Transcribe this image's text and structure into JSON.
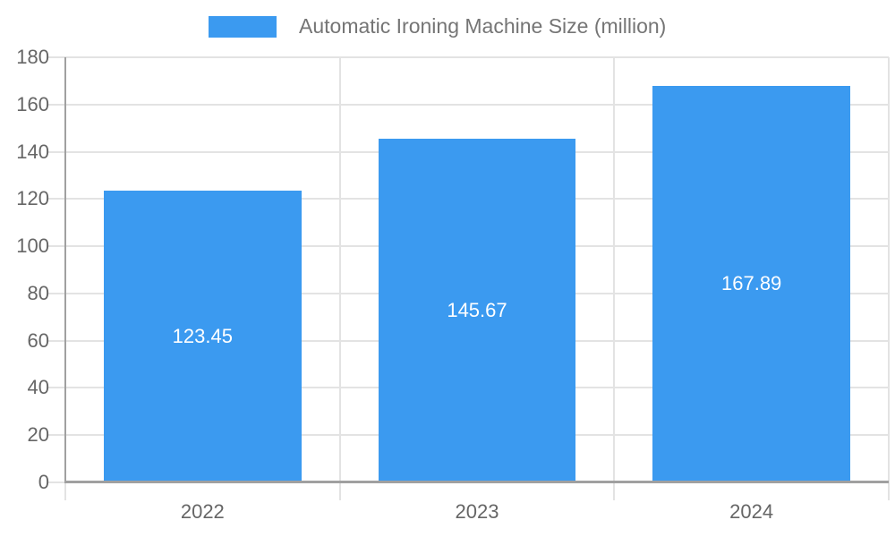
{
  "chart_data": {
    "type": "bar",
    "title": "Automatic Ironing Machine Size (million)",
    "categories": [
      "2022",
      "2023",
      "2024"
    ],
    "series": [
      {
        "name": "Automatic Ironing Machine Size (million)",
        "values": [
          123.45,
          145.67,
          167.89
        ]
      }
    ],
    "value_labels": [
      "123.45",
      "145.67",
      "167.89"
    ],
    "xlabel": "",
    "ylabel": "",
    "ylim": [
      0,
      180
    ],
    "ytick_step": 20,
    "ytick_labels": [
      "0",
      "20",
      "40",
      "60",
      "80",
      "100",
      "120",
      "140",
      "160",
      "180"
    ],
    "grid": true,
    "legend_position": "top",
    "bar_width_fraction": 0.72,
    "colors": {
      "bar": "#3b9af0",
      "grid": "#e3e3e3",
      "axis": "#a0a0a0",
      "tick": "#666666",
      "legend": "#757575",
      "value": "#ffffff",
      "bg": "#ffffff"
    }
  }
}
